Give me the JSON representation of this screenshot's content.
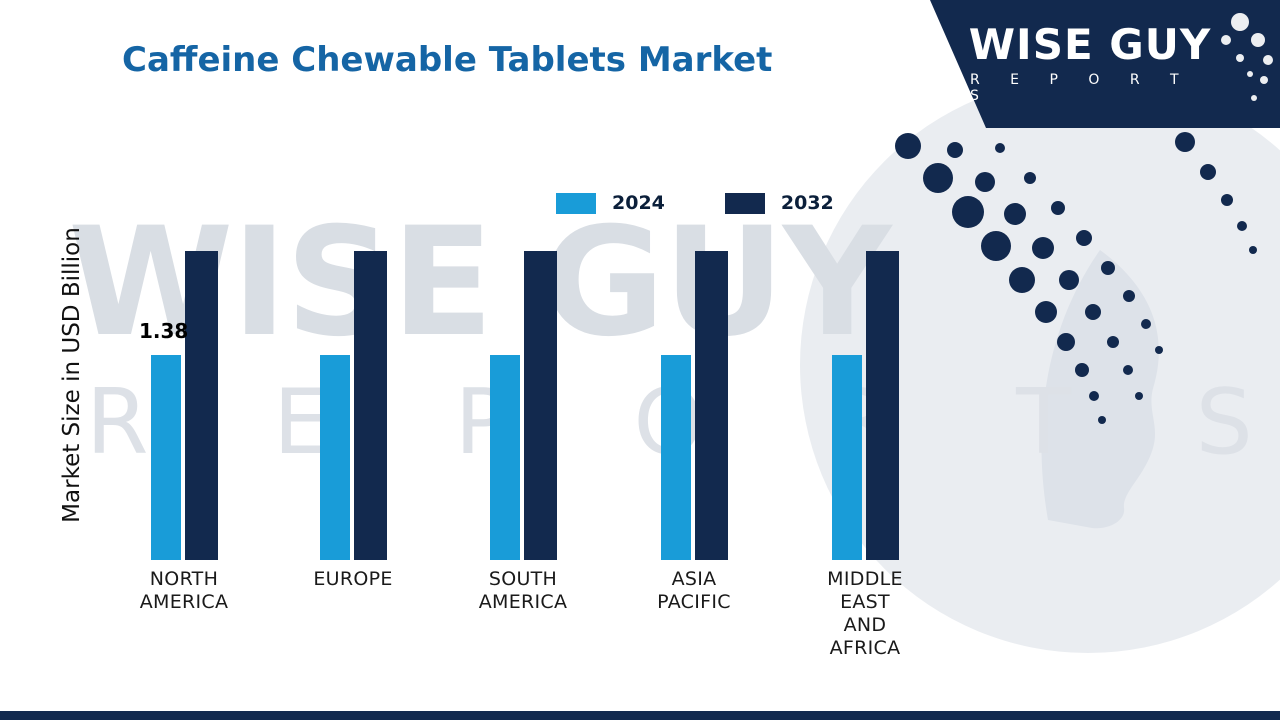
{
  "logo": {
    "line1": "WISE GUY",
    "line2": "R E P O R T S"
  },
  "watermark": {
    "line1": "WISE GUY",
    "line2": "R E P O R T S"
  },
  "chart_data": {
    "type": "bar",
    "title": "Caffeine Chewable Tablets Market",
    "xlabel": "",
    "ylabel": "Market Size in USD Billion",
    "categories": [
      "NORTH AMERICA",
      "EUROPE",
      "SOUTH AMERICA",
      "ASIA PACIFIC",
      "MIDDLE EAST AND AFRICA"
    ],
    "category_lines": [
      [
        "NORTH",
        "AMERICA"
      ],
      [
        "EUROPE"
      ],
      [
        "SOUTH",
        "AMERICA"
      ],
      [
        "ASIA",
        "PACIFIC"
      ],
      [
        "MIDDLE",
        "EAST",
        "AND",
        "AFRICA"
      ]
    ],
    "series": [
      {
        "name": "2024",
        "color": "#199cd8",
        "values": [
          1.38,
          1.38,
          1.38,
          1.38,
          1.38
        ]
      },
      {
        "name": "2032",
        "color": "#12294e",
        "values": [
          2.08,
          2.08,
          2.08,
          2.08,
          2.08
        ]
      }
    ],
    "bar_labels": [
      {
        "series_index": 0,
        "category_index": 0,
        "text": "1.38"
      }
    ],
    "ylim": [
      0,
      2.3
    ],
    "grid": false,
    "legend_position": "top-center"
  },
  "colors": {
    "title": "#1565a5",
    "accent_light": "#199cd8",
    "accent_dark": "#12294e",
    "footer": "#12294e",
    "logo_background": "#12294e",
    "watermark": "#d9dee4"
  }
}
